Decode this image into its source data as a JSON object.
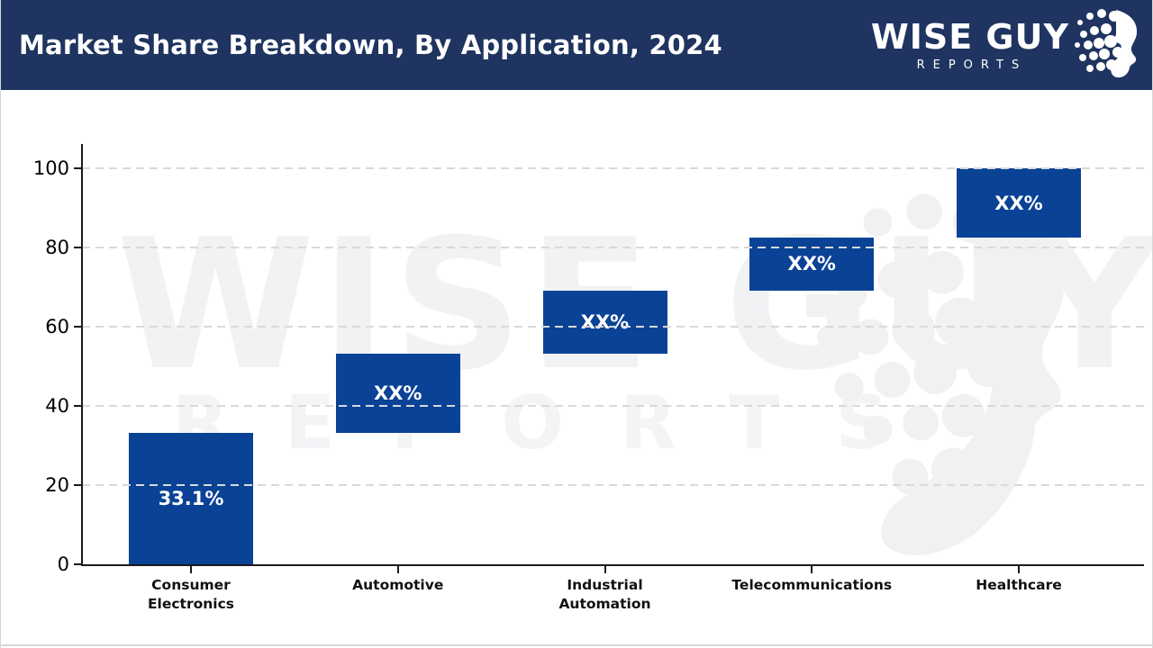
{
  "header": {
    "title": "Market Share Breakdown, By Application, 2024",
    "bg_color": "#1f3460",
    "logo": {
      "wordmark": "WISE GUY",
      "subtext": "REPORTS"
    }
  },
  "watermark": {
    "line1": "WISE GUY",
    "line2": "REPORTS"
  },
  "chart_data": {
    "type": "bar",
    "subtype": "floating-waterfall",
    "title": "Market Share Breakdown, By Application, 2024",
    "unit": "percent market share",
    "categories": [
      [
        "Consumer",
        "Electronics"
      ],
      [
        "Automotive"
      ],
      [
        "Industrial",
        "Automation"
      ],
      [
        "Telecommunications"
      ],
      [
        "Healthcare"
      ]
    ],
    "segments": [
      {
        "start": 0,
        "end": 33.1,
        "label": "33.1%"
      },
      {
        "start": 33.1,
        "end": 53.2,
        "label": "XX%"
      },
      {
        "start": 53.2,
        "end": 69.2,
        "label": "XX%"
      },
      {
        "start": 69.2,
        "end": 82.4,
        "label": "XX%"
      },
      {
        "start": 82.4,
        "end": 100,
        "label": "XX%"
      }
    ],
    "yticks": [
      0,
      20,
      40,
      60,
      80,
      100
    ],
    "ylim": [
      0,
      106
    ],
    "grid": "horizontal-dashed",
    "legend": "none",
    "colors": {
      "bar": "#0a4296",
      "bar_label": "#ffffff",
      "gridline": "#d9d9d9",
      "axis": "#1a1a1a",
      "tick_label": "#000000",
      "header_bg": "#1f3460",
      "header_text": "#ffffff"
    }
  }
}
